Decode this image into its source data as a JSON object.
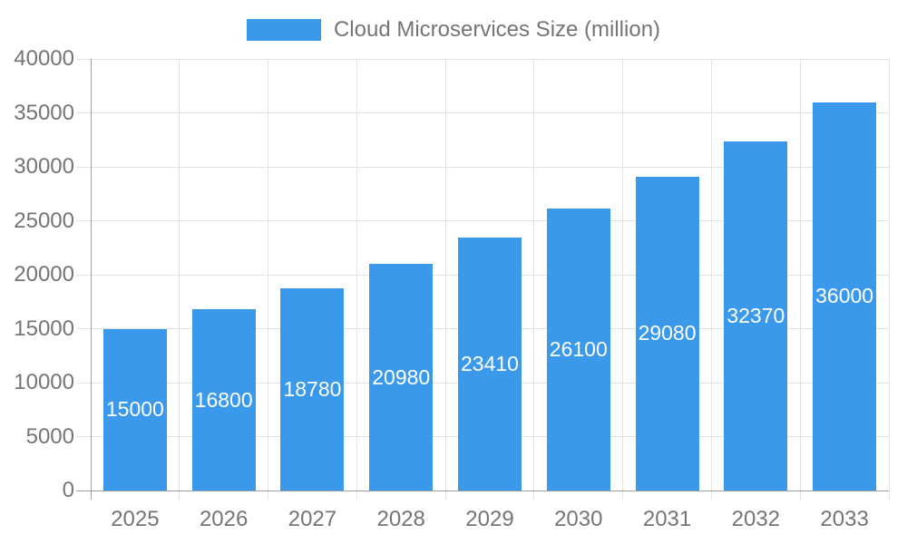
{
  "chart_data": {
    "type": "bar",
    "legend": "Cloud Microservices Size (million)",
    "categories": [
      "2025",
      "2026",
      "2027",
      "2028",
      "2029",
      "2030",
      "2031",
      "2032",
      "2033"
    ],
    "values": [
      15000,
      16800,
      18780,
      20980,
      23410,
      26100,
      29080,
      32370,
      36000
    ],
    "value_labels": [
      "15000",
      "16800",
      "18780",
      "20980",
      "23410",
      "26100",
      "29080",
      "32370",
      "36000"
    ],
    "ylim": [
      0,
      40000
    ],
    "ytick_step": 5000,
    "ytick_labels": [
      "0",
      "5000",
      "10000",
      "15000",
      "20000",
      "25000",
      "30000",
      "35000",
      "40000"
    ],
    "grid": "on",
    "legend_position": "top",
    "colors": {
      "bar": "#3B99EC",
      "gridline": "#E3E3E3",
      "axis": "#9E9E9E",
      "tick_text": "#757575",
      "legend_text": "#757575",
      "bar_label_text": "#FFFFFF",
      "background": "#FFFFFF"
    }
  }
}
